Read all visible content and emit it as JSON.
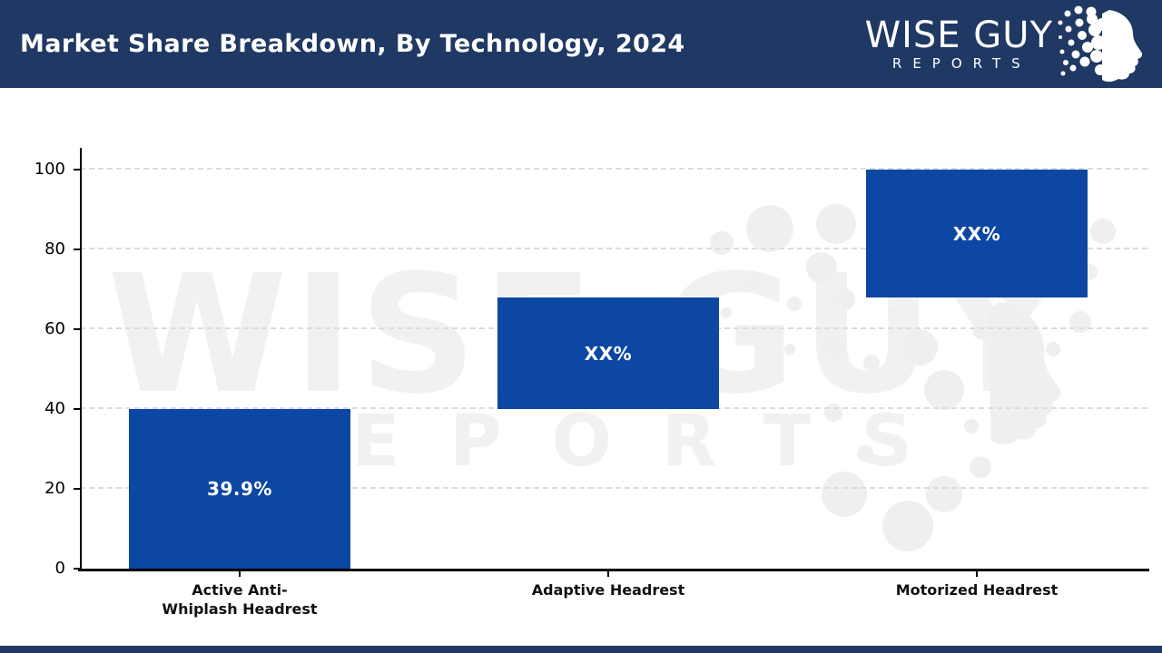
{
  "header": {
    "title": "Market Share Breakdown, By Technology, 2024",
    "bg_color": "#1f3864",
    "logo": {
      "name": "WISE GUY REPORTS",
      "line1": "WISE GUY",
      "line2": "REPORTS",
      "face_icon": "dotted-face-profile"
    }
  },
  "watermark": {
    "line1": "WISE GUY",
    "line2": "REPORTS",
    "color": "#f1f1f4"
  },
  "footer": {
    "bg_color": "#1f3864"
  },
  "chart_data": {
    "type": "bar",
    "variant": "floating-segment-bars (cumulative market share)",
    "title": "Market Share Breakdown, By Technology, 2024",
    "categories": [
      "Active Anti-Whiplash Headrest",
      "Adaptive Headrest",
      "Motorized Headrest"
    ],
    "category_lines": [
      [
        "Active Anti-",
        "Whiplash Headrest"
      ],
      [
        "Adaptive Headrest"
      ],
      [
        "Motorized Headrest"
      ]
    ],
    "series": [
      {
        "name": "Market Share %",
        "segments": [
          {
            "category": "Active Anti-Whiplash Headrest",
            "start": 0,
            "end": 40,
            "label": "39.9%"
          },
          {
            "category": "Adaptive Headrest",
            "start": 40,
            "end": 68,
            "label": "XX%"
          },
          {
            "category": "Motorized Headrest",
            "start": 68,
            "end": 100,
            "label": "XX%"
          }
        ]
      }
    ],
    "y_ticks": [
      0,
      20,
      40,
      60,
      80,
      100
    ],
    "ylim": [
      0,
      105.5
    ],
    "xlabel": "",
    "ylabel": "",
    "bar_color": "#0c47a3",
    "bar_label_color": "#ffffff",
    "grid": "horizontal-dashed",
    "grid_color": "#dcdcdc",
    "axis_color": "#000000",
    "legend": "none"
  }
}
